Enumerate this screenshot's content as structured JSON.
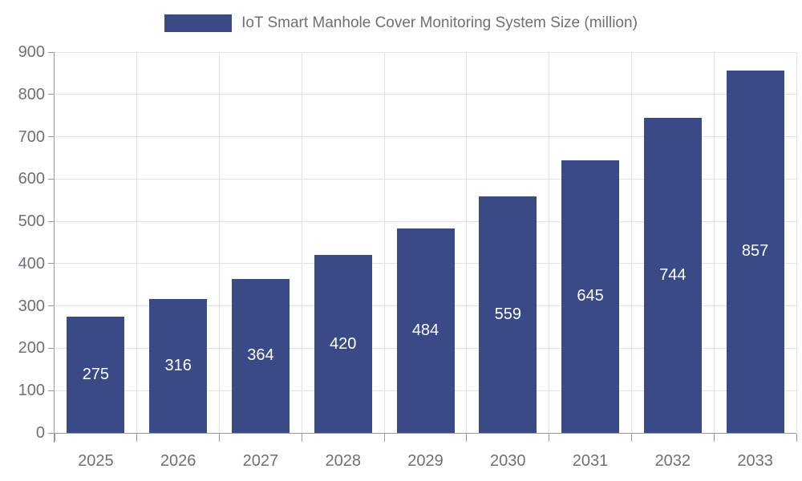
{
  "legend": {
    "label": "IoT Smart Manhole Cover Monitoring System Size (million)"
  },
  "chart_data": {
    "type": "bar",
    "title": "IoT Smart Manhole Cover Monitoring System Size (million)",
    "categories": [
      "2025",
      "2026",
      "2027",
      "2028",
      "2029",
      "2030",
      "2031",
      "2032",
      "2033"
    ],
    "values": [
      275,
      316,
      364,
      420,
      484,
      559,
      645,
      744,
      857
    ],
    "series": [
      {
        "name": "IoT Smart Manhole Cover Monitoring System Size (million)",
        "values": [
          275,
          316,
          364,
          420,
          484,
          559,
          645,
          744,
          857
        ]
      }
    ],
    "value_labels_shown": true,
    "xlabel": "",
    "ylabel": "",
    "ylim": [
      0,
      900
    ],
    "ytick_interval": 100,
    "yticks": [
      0,
      100,
      200,
      300,
      400,
      500,
      600,
      700,
      800,
      900
    ],
    "grid": true,
    "legend_position": "top",
    "colors": {
      "bar": "#3A4A87",
      "value_label": "#FFFFFF",
      "axis": "#999999",
      "gridline": "#E2E2E2",
      "tick_text": "#6E7079",
      "legend_text": "#6E7079",
      "background": "#FFFFFF"
    }
  }
}
